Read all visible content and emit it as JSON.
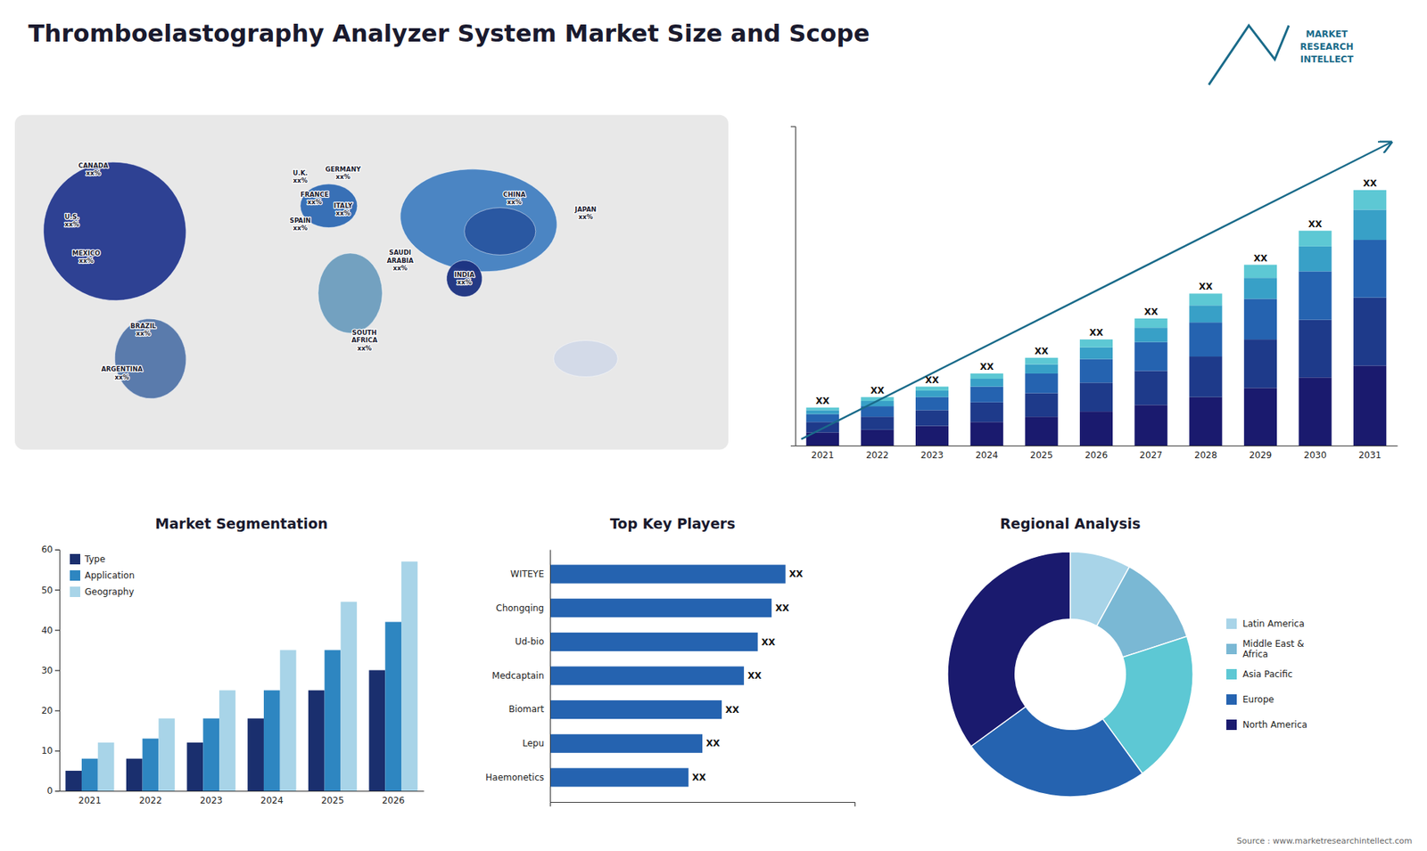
{
  "title": "Thromboelastography Analyzer System Market Size and Scope",
  "annotations": [
    "MARKET\nRESEARCH\nINTELLECT",
    "Source : www.marketresearchintellect.com"
  ],
  "chart_data": [
    {
      "type": "bar",
      "stacked": true,
      "categories": [
        "2021",
        "2022",
        "2023",
        "2024",
        "2025",
        "2026",
        "2027",
        "2028",
        "2029",
        "2030",
        "2031"
      ],
      "series": [
        {
          "color": "#1a1a6e",
          "values": [
            1.0,
            1.2,
            1.5,
            1.8,
            2.2,
            2.6,
            3.1,
            3.7,
            4.4,
            5.2,
            6.1
          ]
        },
        {
          "color": "#1e3a8a",
          "values": [
            0.8,
            1.0,
            1.2,
            1.5,
            1.8,
            2.2,
            2.6,
            3.1,
            3.7,
            4.4,
            5.2
          ]
        },
        {
          "color": "#2563b0",
          "values": [
            0.6,
            0.8,
            1.0,
            1.2,
            1.5,
            1.8,
            2.2,
            2.6,
            3.1,
            3.7,
            4.4
          ]
        },
        {
          "color": "#38a0c7",
          "values": [
            0.3,
            0.4,
            0.5,
            0.6,
            0.7,
            0.9,
            1.1,
            1.3,
            1.6,
            1.9,
            2.3
          ]
        },
        {
          "color": "#5dc8d4",
          "values": [
            0.2,
            0.3,
            0.3,
            0.4,
            0.5,
            0.6,
            0.7,
            0.9,
            1.0,
            1.2,
            1.5
          ]
        }
      ],
      "ylim": [
        0,
        24.375
      ],
      "tick_labels": "x",
      "annotations": [
        "XX",
        "XX",
        "XX",
        "XX",
        "XX",
        "XX",
        "XX",
        "XX",
        "XX",
        "XX",
        "XX"
      ]
    },
    {
      "type": "bar",
      "title": "Market Segmentation",
      "categories": [
        "2021",
        "2022",
        "2023",
        "2024",
        "2025",
        "2026"
      ],
      "series": [
        {
          "name": "Type",
          "color": "#1a2f6e",
          "values": [
            5,
            8,
            12,
            18,
            25,
            30
          ]
        },
        {
          "name": "Application",
          "color": "#2e86c1",
          "values": [
            8,
            13,
            18,
            25,
            35,
            42
          ]
        },
        {
          "name": "Geography",
          "color": "#a8d4e8",
          "values": [
            12,
            18,
            25,
            35,
            47,
            57
          ]
        }
      ],
      "ylim": [
        0,
        60
      ],
      "yticks": [
        0,
        10,
        20,
        30,
        40,
        50,
        60
      ],
      "legend": "upper left"
    },
    {
      "type": "bar",
      "orientation": "horizontal",
      "title": "Top Key Players",
      "categories": [
        "WITEYE",
        "Chongqing",
        "Ud-bio",
        "Medcaptain",
        "Biomart",
        "Lepu",
        "Haemonetics"
      ],
      "values": [
        0.85,
        0.8,
        0.75,
        0.7,
        0.62,
        0.55,
        0.5
      ],
      "color": "#2563b0",
      "xlim": [
        0,
        1.1
      ],
      "tick_labels": "y",
      "data_labels": true,
      "value_labels": [
        "XX",
        "XX",
        "XX",
        "XX",
        "XX",
        "XX",
        "XX"
      ]
    },
    {
      "type": "pie",
      "title": "Regional Analysis",
      "categories": [
        "Latin America",
        "Middle East &\nAfrica",
        "Asia Pacific",
        "Europe",
        "North America"
      ],
      "values": [
        8,
        12,
        20,
        25,
        35
      ],
      "colors": [
        "#a8d4e8",
        "#7ab8d4",
        "#5dc8d4",
        "#2563b0",
        "#1a1a6e"
      ],
      "legend": "right"
    },
    {
      "type": "map",
      "annotations": [
        "CANADA\nxx%",
        "U.S.\nxx%",
        "MEXICO\nxx%",
        "BRAZIL\nxx%",
        "ARGENTINA\nxx%",
        "U.K.\nxx%",
        "FRANCE\nxx%",
        "SPAIN\nxx%",
        "GERMANY\nxx%",
        "ITALY\nxx%",
        "SAUDI\nARABIA\nxx%",
        "SOUTH\nAFRICA\nxx%",
        "CHINA\nxx%",
        "INDIA\nxx%",
        "JAPAN\nxx%"
      ]
    }
  ]
}
